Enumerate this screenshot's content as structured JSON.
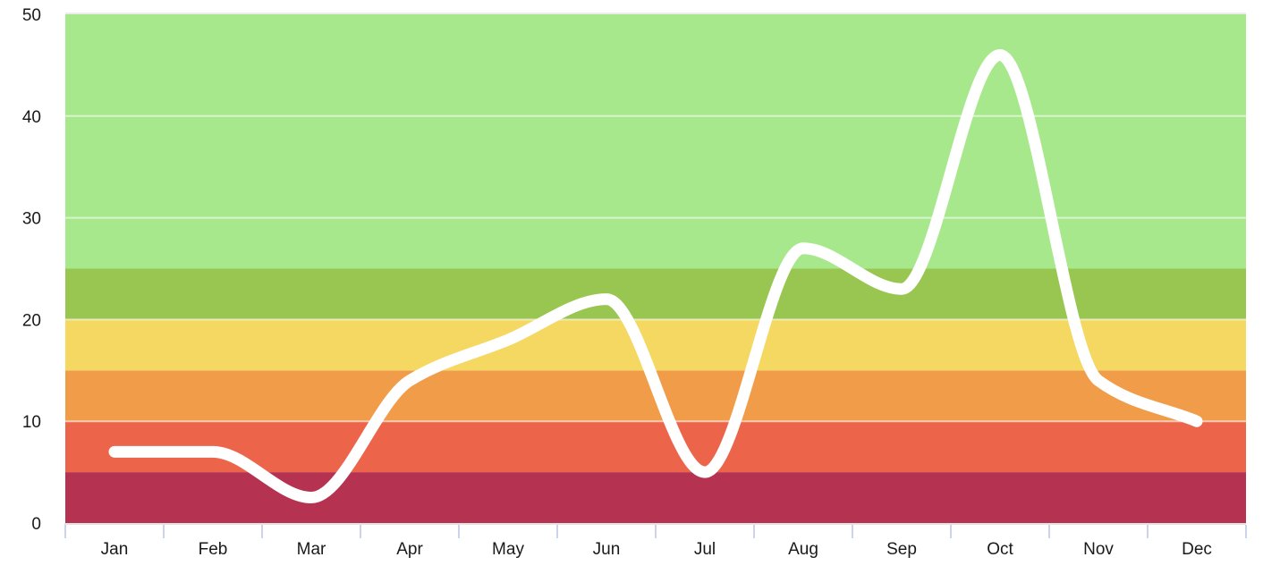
{
  "chart_data": {
    "type": "line",
    "title": "",
    "xlabel": "",
    "ylabel": "",
    "categories": [
      "Jan",
      "Feb",
      "Mar",
      "Apr",
      "May",
      "Jun",
      "Jul",
      "Aug",
      "Sep",
      "Oct",
      "Nov",
      "Dec"
    ],
    "series": [
      {
        "name": "monthly-values",
        "values": [
          7,
          7,
          2.5,
          14,
          18,
          22,
          5,
          27,
          23,
          46,
          14,
          10
        ]
      }
    ],
    "ylim": [
      0,
      50
    ],
    "yticks": [
      0,
      10,
      20,
      30,
      40,
      50
    ],
    "grid": true,
    "legend_position": "none",
    "smoothing": "monotone",
    "line": {
      "color": "#ffffff",
      "width": 13
    },
    "bands": [
      {
        "name": "band-0-5",
        "from": 0,
        "to": 5,
        "color": "#b53251"
      },
      {
        "name": "band-5-10",
        "from": 5,
        "to": 10,
        "color": "#ec654b"
      },
      {
        "name": "band-10-15",
        "from": 10,
        "to": 15,
        "color": "#f19c48"
      },
      {
        "name": "band-15-20",
        "from": 15,
        "to": 20,
        "color": "#f4d862"
      },
      {
        "name": "band-20-25",
        "from": 20,
        "to": 25,
        "color": "#99c551"
      },
      {
        "name": "band-25-50",
        "from": 25,
        "to": 50,
        "color": "#a8e88c"
      }
    ],
    "colors": {
      "gridline": "rgba(255,255,255,0.55)",
      "plot_top_border": "#ececec",
      "axis_baseline": "#e3e3e3",
      "tick_mark": "#ccd3ea",
      "axis_label": "#1a1a1a"
    }
  }
}
